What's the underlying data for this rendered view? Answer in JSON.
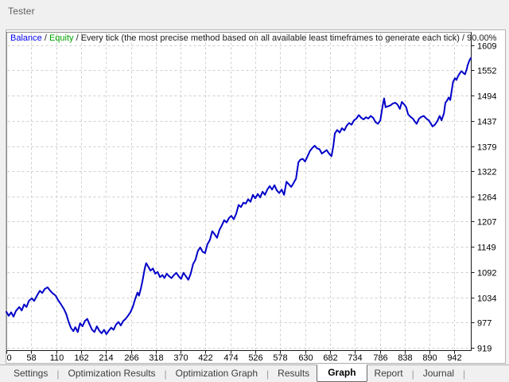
{
  "window": {
    "title": "Tester"
  },
  "chart": {
    "legend": {
      "balance_label": "Balance",
      "equity_label": "Equity",
      "separator": " / ",
      "model_text": "Every tick (the most precise method based on all available least timeframes to generate each tick)",
      "quality_text": "90.00%"
    },
    "colors": {
      "balance_legend": "#0000ee",
      "equity_legend": "#00a000",
      "curve": "#0000c8",
      "grid": "#cfcfcf",
      "axis": "#1a1a1a",
      "frame": "#8a8a8a"
    }
  },
  "chart_data": {
    "type": "line",
    "title": "",
    "x_tick_labels": [
      "0",
      "58",
      "110",
      "162",
      "214",
      "266",
      "318",
      "370",
      "422",
      "474",
      "526",
      "578",
      "630",
      "682",
      "734",
      "786",
      "838",
      "890",
      "942"
    ],
    "y_tick_labels": [
      "1609",
      "1552",
      "1494",
      "1437",
      "1379",
      "1322",
      "1264",
      "1207",
      "1149",
      "1092",
      "1034",
      "977",
      "919"
    ],
    "xlim": [
      0,
      970
    ],
    "ylim": [
      919,
      1609
    ],
    "grid": "dashed",
    "legend_position": "top-left",
    "series": [
      {
        "name": "Balance",
        "color": "#0000c8",
        "points": [
          [
            0,
            1001
          ],
          [
            5,
            992
          ],
          [
            10,
            1000
          ],
          [
            15,
            990
          ],
          [
            20,
            1003
          ],
          [
            27,
            1012
          ],
          [
            32,
            1004
          ],
          [
            37,
            1018
          ],
          [
            42,
            1012
          ],
          [
            47,
            1026
          ],
          [
            53,
            1032
          ],
          [
            58,
            1026
          ],
          [
            65,
            1040
          ],
          [
            70,
            1049
          ],
          [
            75,
            1044
          ],
          [
            80,
            1053
          ],
          [
            86,
            1057
          ],
          [
            91,
            1050
          ],
          [
            96,
            1044
          ],
          [
            103,
            1038
          ],
          [
            108,
            1028
          ],
          [
            113,
            1020
          ],
          [
            120,
            1008
          ],
          [
            125,
            996
          ],
          [
            130,
            978
          ],
          [
            135,
            964
          ],
          [
            140,
            957
          ],
          [
            144,
            966
          ],
          [
            149,
            955
          ],
          [
            154,
            975
          ],
          [
            159,
            968
          ],
          [
            164,
            980
          ],
          [
            169,
            985
          ],
          [
            174,
            972
          ],
          [
            179,
            960
          ],
          [
            184,
            955
          ],
          [
            189,
            968
          ],
          [
            194,
            958
          ],
          [
            199,
            952
          ],
          [
            204,
            960
          ],
          [
            209,
            950
          ],
          [
            214,
            958
          ],
          [
            219,
            965
          ],
          [
            224,
            960
          ],
          [
            229,
            972
          ],
          [
            234,
            978
          ],
          [
            239,
            970
          ],
          [
            244,
            980
          ],
          [
            249,
            985
          ],
          [
            254,
            992
          ],
          [
            259,
            1000
          ],
          [
            264,
            1012
          ],
          [
            269,
            1030
          ],
          [
            274,
            1045
          ],
          [
            277,
            1038
          ],
          [
            281,
            1055
          ],
          [
            284,
            1070
          ],
          [
            289,
            1100
          ],
          [
            292,
            1112
          ],
          [
            296,
            1105
          ],
          [
            301,
            1095
          ],
          [
            306,
            1100
          ],
          [
            311,
            1088
          ],
          [
            316,
            1092
          ],
          [
            321,
            1080
          ],
          [
            326,
            1085
          ],
          [
            330,
            1078
          ],
          [
            335,
            1088
          ],
          [
            340,
            1082
          ],
          [
            345,
            1078
          ],
          [
            350,
            1085
          ],
          [
            355,
            1090
          ],
          [
            360,
            1082
          ],
          [
            365,
            1076
          ],
          [
            370,
            1090
          ],
          [
            375,
            1082
          ],
          [
            380,
            1074
          ],
          [
            385,
            1088
          ],
          [
            390,
            1110
          ],
          [
            395,
            1120
          ],
          [
            400,
            1140
          ],
          [
            405,
            1148
          ],
          [
            410,
            1138
          ],
          [
            415,
            1135
          ],
          [
            420,
            1155
          ],
          [
            425,
            1165
          ],
          [
            430,
            1185
          ],
          [
            435,
            1178
          ],
          [
            440,
            1170
          ],
          [
            445,
            1188
          ],
          [
            450,
            1198
          ],
          [
            455,
            1210
          ],
          [
            460,
            1205
          ],
          [
            465,
            1215
          ],
          [
            470,
            1220
          ],
          [
            475,
            1212
          ],
          [
            480,
            1225
          ],
          [
            485,
            1245
          ],
          [
            490,
            1240
          ],
          [
            495,
            1250
          ],
          [
            500,
            1248
          ],
          [
            505,
            1258
          ],
          [
            510,
            1252
          ],
          [
            515,
            1268
          ],
          [
            520,
            1260
          ],
          [
            525,
            1270
          ],
          [
            530,
            1262
          ],
          [
            535,
            1275
          ],
          [
            540,
            1268
          ],
          [
            545,
            1280
          ],
          [
            550,
            1288
          ],
          [
            555,
            1280
          ],
          [
            560,
            1290
          ],
          [
            565,
            1278
          ],
          [
            570,
            1272
          ],
          [
            575,
            1280
          ],
          [
            580,
            1268
          ],
          [
            585,
            1298
          ],
          [
            590,
            1292
          ],
          [
            595,
            1286
          ],
          [
            600,
            1295
          ],
          [
            605,
            1305
          ],
          [
            610,
            1342
          ],
          [
            614,
            1348
          ],
          [
            619,
            1350
          ],
          [
            624,
            1344
          ],
          [
            629,
            1356
          ],
          [
            634,
            1368
          ],
          [
            639,
            1375
          ],
          [
            644,
            1380
          ],
          [
            649,
            1374
          ],
          [
            654,
            1372
          ],
          [
            659,
            1362
          ],
          [
            664,
            1366
          ],
          [
            669,
            1370
          ],
          [
            674,
            1362
          ],
          [
            679,
            1356
          ],
          [
            683,
            1380
          ],
          [
            686,
            1408
          ],
          [
            691,
            1416
          ],
          [
            696,
            1410
          ],
          [
            701,
            1420
          ],
          [
            706,
            1415
          ],
          [
            711,
            1426
          ],
          [
            716,
            1432
          ],
          [
            721,
            1428
          ],
          [
            726,
            1438
          ],
          [
            731,
            1442
          ],
          [
            736,
            1450
          ],
          [
            741,
            1444
          ],
          [
            746,
            1440
          ],
          [
            751,
            1445
          ],
          [
            756,
            1442
          ],
          [
            761,
            1448
          ],
          [
            766,
            1444
          ],
          [
            771,
            1434
          ],
          [
            776,
            1430
          ],
          [
            781,
            1438
          ],
          [
            786,
            1472
          ],
          [
            789,
            1488
          ],
          [
            792,
            1468
          ],
          [
            797,
            1470
          ],
          [
            802,
            1472
          ],
          [
            807,
            1476
          ],
          [
            812,
            1478
          ],
          [
            817,
            1474
          ],
          [
            822,
            1464
          ],
          [
            826,
            1480
          ],
          [
            831,
            1474
          ],
          [
            835,
            1468
          ],
          [
            839,
            1452
          ],
          [
            844,
            1446
          ],
          [
            849,
            1442
          ],
          [
            854,
            1434
          ],
          [
            857,
            1430
          ],
          [
            862,
            1442
          ],
          [
            867,
            1446
          ],
          [
            872,
            1448
          ],
          [
            877,
            1442
          ],
          [
            882,
            1438
          ],
          [
            887,
            1430
          ],
          [
            890,
            1424
          ],
          [
            895,
            1428
          ],
          [
            900,
            1436
          ],
          [
            905,
            1448
          ],
          [
            909,
            1438
          ],
          [
            914,
            1454
          ],
          [
            917,
            1478
          ],
          [
            920,
            1482
          ],
          [
            924,
            1490
          ],
          [
            927,
            1484
          ],
          [
            930,
            1505
          ],
          [
            933,
            1526
          ],
          [
            937,
            1534
          ],
          [
            940,
            1530
          ],
          [
            943,
            1538
          ],
          [
            947,
            1545
          ],
          [
            950,
            1550
          ],
          [
            953,
            1548
          ],
          [
            955,
            1545
          ],
          [
            958,
            1543
          ],
          [
            962,
            1556
          ],
          [
            963,
            1562
          ],
          [
            967,
            1574
          ],
          [
            970,
            1580
          ]
        ]
      }
    ]
  },
  "tabs": {
    "separator": "|",
    "items": [
      {
        "label": "Settings",
        "active": false
      },
      {
        "label": "Optimization Results",
        "active": false
      },
      {
        "label": "Optimization Graph",
        "active": false
      },
      {
        "label": "Results",
        "active": false
      },
      {
        "label": "Graph",
        "active": true
      },
      {
        "label": "Report",
        "active": false
      },
      {
        "label": "Journal",
        "active": false
      }
    ]
  }
}
